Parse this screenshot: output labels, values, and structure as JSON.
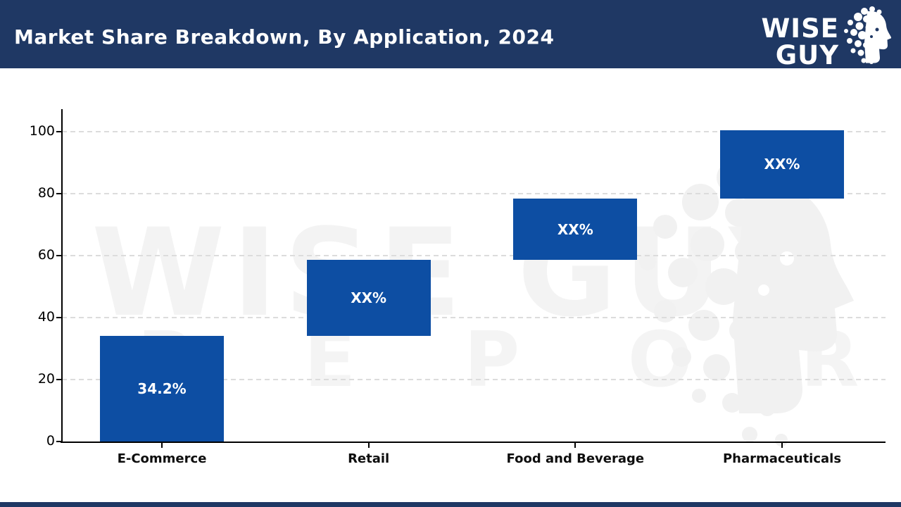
{
  "header": {
    "title": "Market Share Breakdown, By Application, 2024",
    "logo": {
      "name": "WISE GUY",
      "sub": "R E P O R T S"
    }
  },
  "watermark": {
    "line1": "WISE GUY",
    "line2": "R E P O R T S"
  },
  "chart_data": {
    "type": "bar",
    "subtype": "waterfall",
    "title": "Market Share Breakdown, By Application, 2024",
    "categories": [
      "E-Commerce",
      "Retail",
      "Food and Beverage",
      "Pharmaceuticals"
    ],
    "segments": [
      {
        "category": "E-Commerce",
        "start": 0,
        "end": 34.2,
        "label": "34.2%"
      },
      {
        "category": "Retail",
        "start": 34.2,
        "end": 58.6,
        "label": "XX%"
      },
      {
        "category": "Food and Beverage",
        "start": 58.6,
        "end": 78.4,
        "label": "XX%"
      },
      {
        "category": "Pharmaceuticals",
        "start": 78.4,
        "end": 100.5,
        "label": "XX%"
      }
    ],
    "yticks": [
      0,
      20,
      40,
      60,
      80,
      100
    ],
    "ylim": [
      0,
      107
    ],
    "xlabel": "",
    "ylabel": "",
    "grid": "horizontal-dashed",
    "legend": "none"
  },
  "colors": {
    "header_bg": "#1f3864",
    "footer_bg": "#1f3864",
    "bar": "#0d4ea3",
    "bar_label": "#ffffff",
    "grid": "#dcdcdc",
    "axis": "#000000",
    "watermark": "#f3f3f3"
  }
}
